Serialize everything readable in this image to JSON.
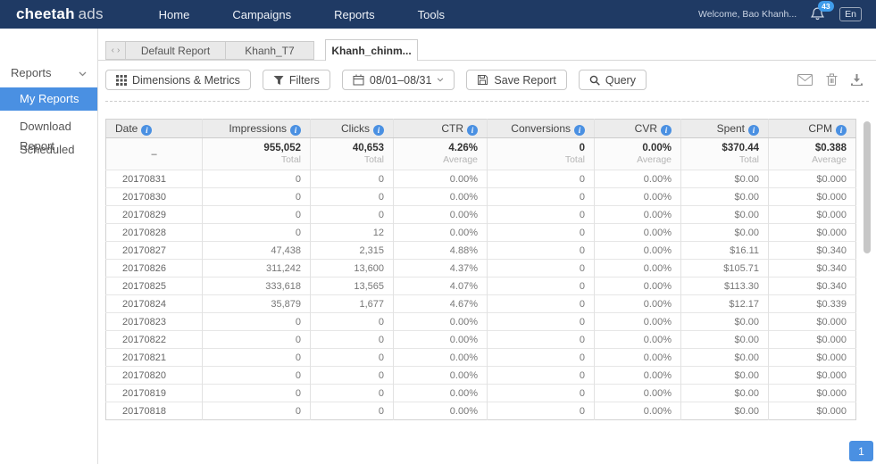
{
  "navbar": {
    "logo_bold": "cheetah",
    "logo_light": "ads",
    "items": [
      "Home",
      "Campaigns",
      "Reports",
      "Tools"
    ],
    "welcome": "Welcome,  Bao Khanh...",
    "notification_count": "43",
    "language": "En"
  },
  "sidebar": {
    "section_label": "Reports",
    "items": [
      {
        "label": "My Reports",
        "active": true
      },
      {
        "label": "Download Report",
        "active": false
      },
      {
        "label": "Scheduled",
        "active": false
      }
    ]
  },
  "tabs": [
    "Default Report",
    "Khanh_T7",
    "Khanh_chinm..."
  ],
  "toolbar": {
    "dimensions_metrics": "Dimensions & Metrics",
    "filters": "Filters",
    "date_range": "08/01–08/31",
    "save_report": "Save Report",
    "query": "Query"
  },
  "icons": {
    "tab_nav_left": "‹",
    "tab_nav_right": "›",
    "info_glyph": "i"
  },
  "table": {
    "columns": [
      "Date",
      "Impressions",
      "Clicks",
      "CTR",
      "Conversions",
      "CVR",
      "Spent",
      "CPM"
    ],
    "totals": {
      "date": "–",
      "values": [
        "955,052",
        "40,653",
        "4.26%",
        "0",
        "0.00%",
        "$370.44",
        "$0.388"
      ],
      "sublabels": [
        "Total",
        "Total",
        "Average",
        "Total",
        "Average",
        "Total",
        "Average"
      ]
    },
    "rows": [
      [
        "20170831",
        "0",
        "0",
        "0.00%",
        "0",
        "0.00%",
        "$0.00",
        "$0.000"
      ],
      [
        "20170830",
        "0",
        "0",
        "0.00%",
        "0",
        "0.00%",
        "$0.00",
        "$0.000"
      ],
      [
        "20170829",
        "0",
        "0",
        "0.00%",
        "0",
        "0.00%",
        "$0.00",
        "$0.000"
      ],
      [
        "20170828",
        "0",
        "12",
        "0.00%",
        "0",
        "0.00%",
        "$0.00",
        "$0.000"
      ],
      [
        "20170827",
        "47,438",
        "2,315",
        "4.88%",
        "0",
        "0.00%",
        "$16.11",
        "$0.340"
      ],
      [
        "20170826",
        "311,242",
        "13,600",
        "4.37%",
        "0",
        "0.00%",
        "$105.71",
        "$0.340"
      ],
      [
        "20170825",
        "333,618",
        "13,565",
        "4.07%",
        "0",
        "0.00%",
        "$113.30",
        "$0.340"
      ],
      [
        "20170824",
        "35,879",
        "1,677",
        "4.67%",
        "0",
        "0.00%",
        "$12.17",
        "$0.339"
      ],
      [
        "20170823",
        "0",
        "0",
        "0.00%",
        "0",
        "0.00%",
        "$0.00",
        "$0.000"
      ],
      [
        "20170822",
        "0",
        "0",
        "0.00%",
        "0",
        "0.00%",
        "$0.00",
        "$0.000"
      ],
      [
        "20170821",
        "0",
        "0",
        "0.00%",
        "0",
        "0.00%",
        "$0.00",
        "$0.000"
      ],
      [
        "20170820",
        "0",
        "0",
        "0.00%",
        "0",
        "0.00%",
        "$0.00",
        "$0.000"
      ],
      [
        "20170819",
        "0",
        "0",
        "0.00%",
        "0",
        "0.00%",
        "$0.00",
        "$0.000"
      ],
      [
        "20170818",
        "0",
        "0",
        "0.00%",
        "0",
        "0.00%",
        "$0.00",
        "$0.000"
      ]
    ]
  },
  "pagination": {
    "page": "1"
  },
  "colors": {
    "navbar_bg": "#1f3a64",
    "accent": "#4a90e2",
    "table_header_bg": "#ececec"
  }
}
